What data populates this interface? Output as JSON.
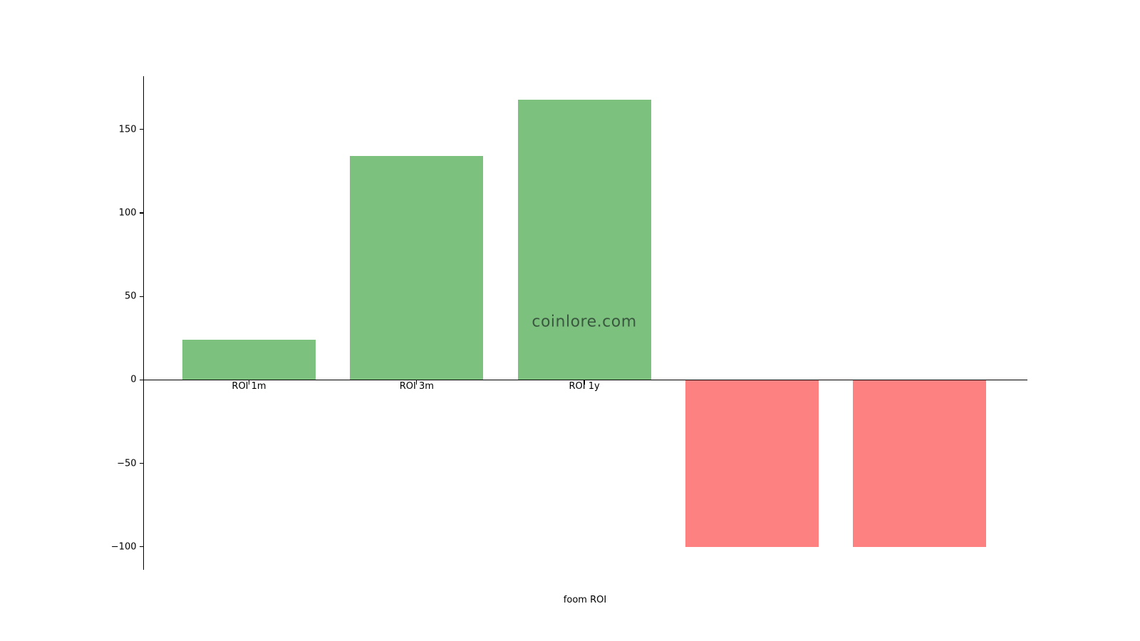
{
  "chart_data": {
    "type": "bar",
    "title": "",
    "xlabel": "foom ROI",
    "ylabel": "",
    "categories": [
      "ROI 1m",
      "ROI 3m",
      "ROI 1y",
      "",
      ""
    ],
    "values": [
      24,
      134,
      168,
      -100,
      -100
    ],
    "series": [
      {
        "name": "foom ROI",
        "values": [
          24,
          134,
          168,
          -100,
          -100
        ]
      }
    ],
    "y_ticks": [
      150,
      100,
      50,
      0,
      -50,
      -100
    ],
    "y_tick_labels": [
      "150",
      "100",
      "50",
      "0",
      "−50",
      "−100"
    ],
    "ylim": [
      -112,
      182
    ],
    "grid": false,
    "legend_position": "none",
    "positive_color": "#7cc17e",
    "negative_color": "#fd8181",
    "axis_color": "#000000",
    "background_color": "#ffffff",
    "watermark": "coinlore.com",
    "watermark_color": "#3a573f"
  }
}
